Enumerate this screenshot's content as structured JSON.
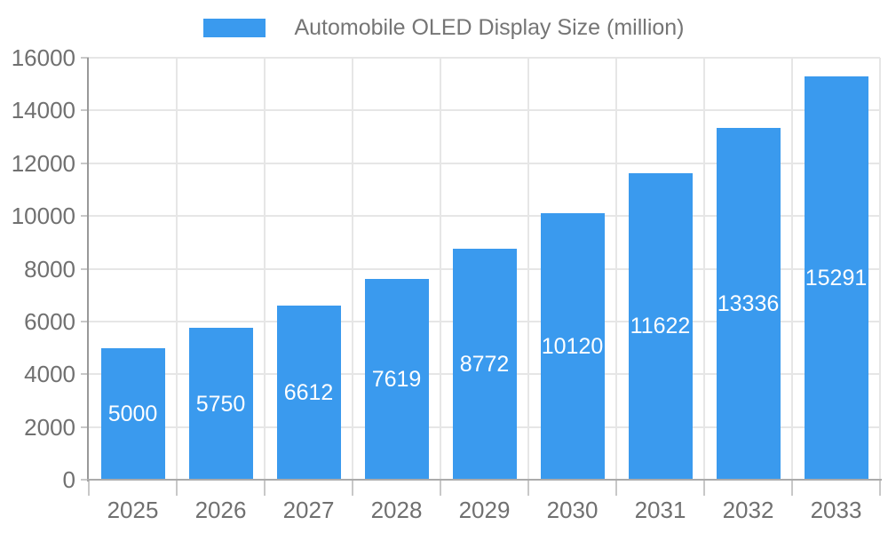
{
  "legend": {
    "label": "Automobile OLED Display Size (million)"
  },
  "colors": {
    "bar": "#3a9aee",
    "title_text": "#757575",
    "axis_text": "#707070",
    "bar_label_text": "#ffffff",
    "gridline": "#e6e6e6",
    "y_axis_line": "#999999",
    "x_axis_line": "#ababab",
    "tick": "#c8c8c8"
  },
  "chart_data": {
    "type": "bar",
    "title": "Automobile OLED Display Size (million)",
    "categories": [
      "2025",
      "2026",
      "2027",
      "2028",
      "2029",
      "2030",
      "2031",
      "2032",
      "2033"
    ],
    "values": [
      5000,
      5750,
      6612,
      7619,
      8772,
      10120,
      11622,
      13336,
      15291
    ],
    "series": [
      {
        "name": "Automobile OLED Display Size (million)",
        "values": [
          5000,
          5750,
          6612,
          7619,
          8772,
          10120,
          11622,
          13336,
          15291
        ]
      }
    ],
    "xlabel": "",
    "ylabel": "",
    "ylim": [
      0,
      16000
    ],
    "yticks": [
      0,
      2000,
      4000,
      6000,
      8000,
      10000,
      12000,
      14000,
      16000
    ],
    "grid": true,
    "legend_position": "top-center",
    "value_labels": "inside-center-white"
  }
}
